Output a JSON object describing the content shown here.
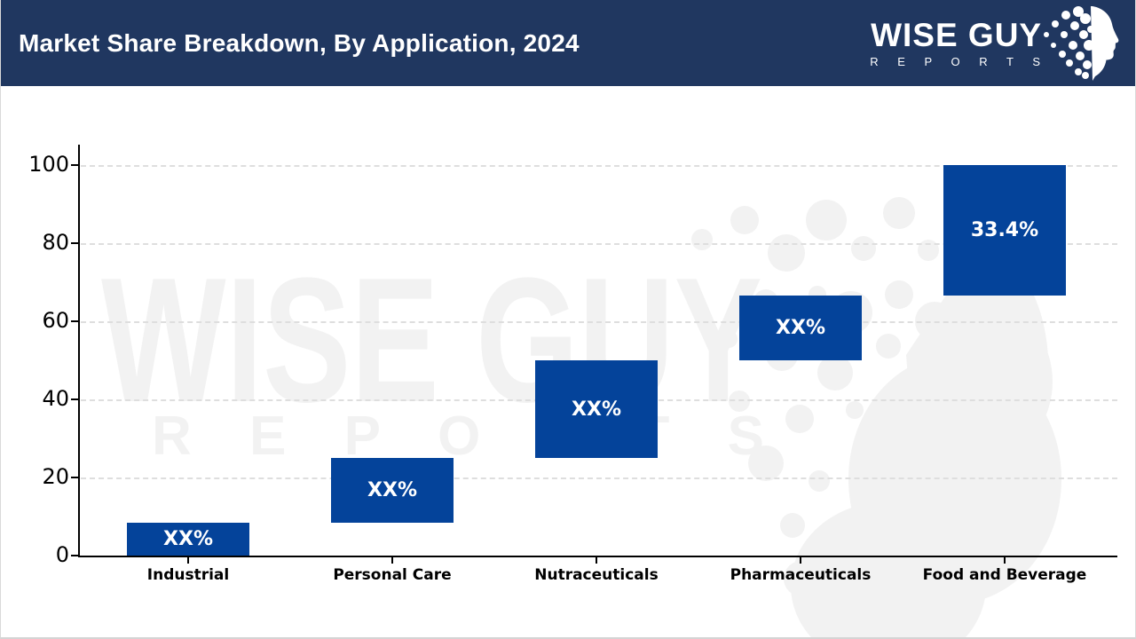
{
  "header": {
    "title": "Market Share Breakdown, By Application, 2024",
    "bg_color": "#203760",
    "logo": {
      "line1": "WISE GUY",
      "line2": "R E P O R T S"
    }
  },
  "watermark": {
    "line1": "WISE GUY",
    "line2": "R E P O R T S"
  },
  "chart_data": {
    "type": "bar",
    "subtype": "waterfall",
    "title": "Market Share Breakdown, By Application, 2024",
    "xlabel": "",
    "ylabel": "",
    "ylim": [
      0,
      100
    ],
    "yticks": [
      0,
      20,
      40,
      60,
      80,
      100
    ],
    "grid": "horizontal-dashed",
    "legend": "none",
    "bar_color": "#04439a",
    "categories": [
      "Industrial",
      "Personal Care",
      "Nutraceuticals",
      "Pharmaceuticals",
      "Food and Beverage"
    ],
    "segments": [
      {
        "category": "Industrial",
        "start": 0,
        "end": 8.3,
        "label": "XX%"
      },
      {
        "category": "Personal Care",
        "start": 8.3,
        "end": 25,
        "label": "XX%"
      },
      {
        "category": "Nutraceuticals",
        "start": 25,
        "end": 50,
        "label": "XX%"
      },
      {
        "category": "Pharmaceuticals",
        "start": 50,
        "end": 66.6,
        "label": "XX%"
      },
      {
        "category": "Food and Beverage",
        "start": 66.6,
        "end": 100,
        "label": "33.4%"
      }
    ]
  }
}
